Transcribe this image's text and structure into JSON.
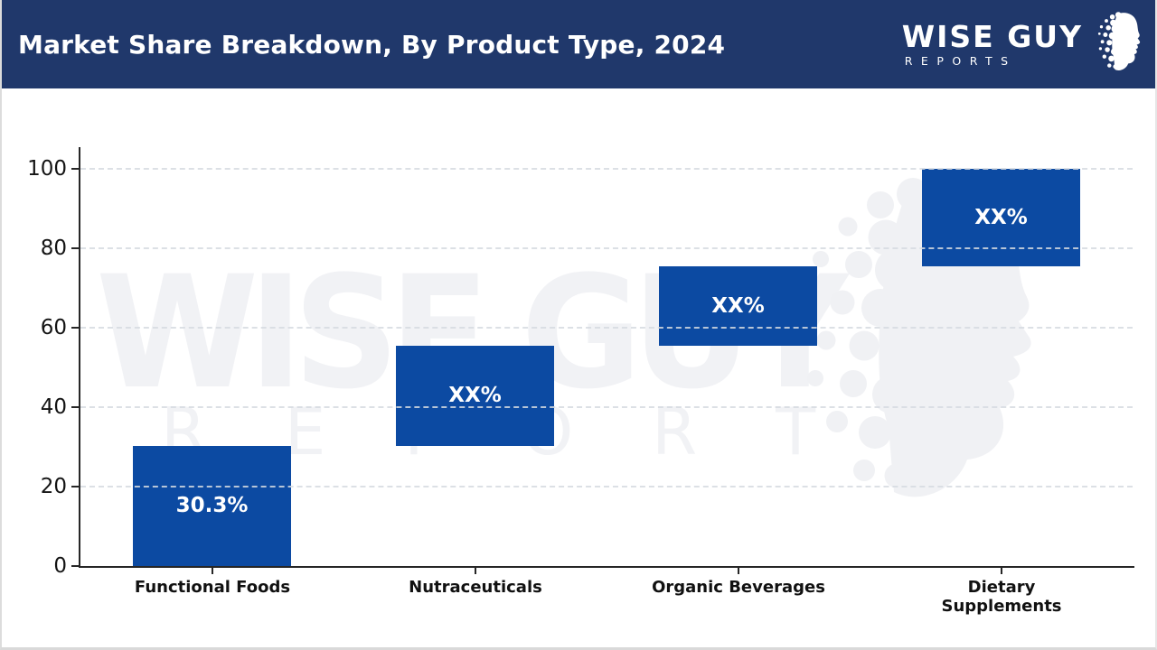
{
  "header": {
    "title": "Market Share Breakdown, By Product Type, 2024",
    "logo": {
      "brand_top": "WISE GUY",
      "brand_bottom": "REPORTS",
      "face_icon": "dotted-head-profile"
    }
  },
  "watermark": {
    "line1": "WISE GUY",
    "line2": "R E P O R T S",
    "face_icon": "dotted-head-profile"
  },
  "colors": {
    "header_bg": "#20386b",
    "bar": "#0c4aa2",
    "bar_label": "#ffffff",
    "axis": "#262626",
    "gridline": "#d9dce1",
    "watermark": "#f1f2f5",
    "tick_text": "#141414",
    "category_text": "#111111",
    "page_border": "#d9d9d9"
  },
  "chart_data": {
    "type": "bar",
    "subtype": "waterfall",
    "title": "Market Share Breakdown, By Product Type, 2024",
    "categories": [
      "Functional Foods",
      "Nutraceuticals",
      "Organic Beverages",
      "Dietary\nSupplements"
    ],
    "series": [
      {
        "name": "Market share (%)",
        "segments": [
          {
            "category": "Functional Foods",
            "start": 0,
            "end": 30.3,
            "label": "30.3%"
          },
          {
            "category": "Nutraceuticals",
            "start": 30.3,
            "end": 55.4,
            "label": "XX%"
          },
          {
            "category": "Organic Beverages",
            "start": 55.4,
            "end": 75.5,
            "label": "XX%"
          },
          {
            "category": "Dietary Supplements",
            "start": 75.5,
            "end": 100,
            "label": "XX%"
          }
        ]
      }
    ],
    "xlabel": "",
    "ylabel": "",
    "ylim": [
      0,
      100
    ],
    "yticks": [
      0,
      20,
      40,
      60,
      80,
      100
    ],
    "grid": "horizontal-dashed",
    "legend_position": "none",
    "bar_width_fraction": 0.6
  }
}
